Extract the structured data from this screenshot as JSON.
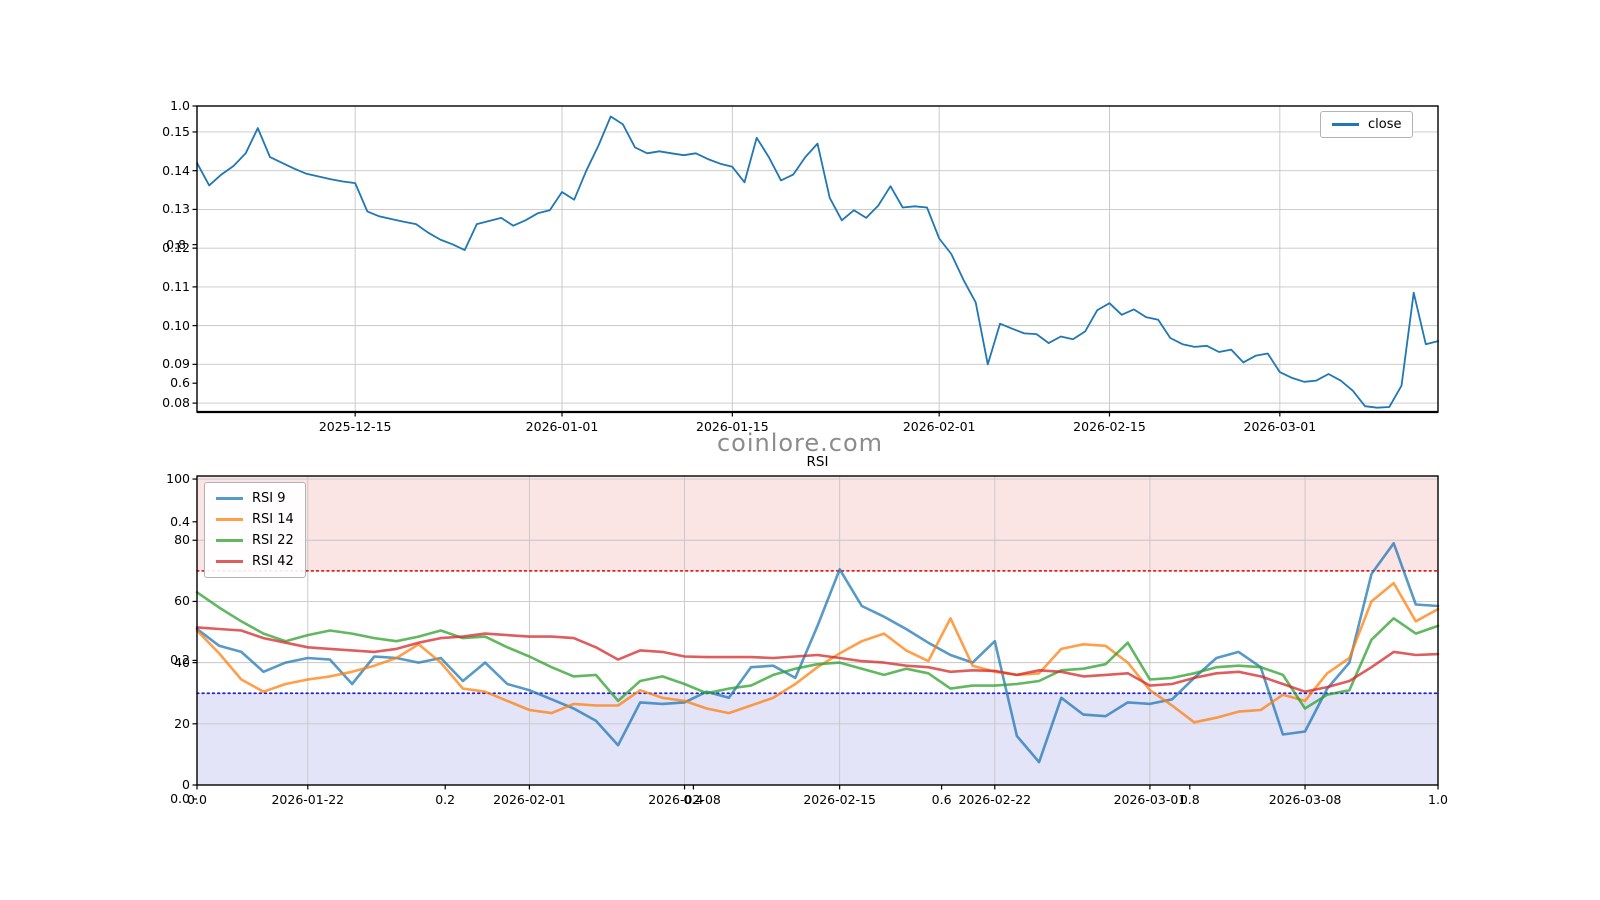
{
  "watermark": {
    "text": "coinlore.com",
    "color": "#8c8c8c"
  },
  "overlay_axis": {
    "x_ticks": {
      "values": [
        0,
        0.2,
        0.4,
        0.6,
        0.8,
        1.0
      ],
      "labels": [
        "0.0",
        "0.2",
        "0.4",
        "0.6",
        "0.8",
        "1.0"
      ]
    },
    "y_ticks": {
      "values": [
        0,
        0.2,
        0.4,
        0.6,
        0.8,
        1.0
      ],
      "labels": [
        "0.0",
        "0.2",
        "0.4",
        "0.6",
        "0.8",
        "1.0"
      ]
    }
  },
  "chart_data": [
    {
      "type": "line",
      "panel": "price",
      "ylim": [
        0.0777,
        0.1567
      ],
      "x_range_dates": [
        "2025-12-02",
        "2026-03-14"
      ],
      "grid": true,
      "legend_position": "upper right",
      "x_ticks": {
        "dates": [
          "2025-12-15",
          "2026-01-01",
          "2026-01-15",
          "2026-02-01",
          "2026-02-15",
          "2026-03-01"
        ]
      },
      "y_ticks": {
        "values": [
          0.08,
          0.09,
          0.1,
          0.11,
          0.12,
          0.13,
          0.14,
          0.15
        ],
        "labels": [
          "0.08",
          "0.09",
          "0.10",
          "0.11",
          "0.12",
          "0.13",
          "0.14",
          "0.15"
        ]
      },
      "series": [
        {
          "name": "close",
          "color": "#1f77b4",
          "opacity": 1,
          "line_width": 1.8,
          "start_date": "2025-12-02",
          "values": [
            0.142,
            0.1362,
            0.139,
            0.1412,
            0.1445,
            0.151,
            0.1435,
            0.142,
            0.1405,
            0.1392,
            0.1385,
            0.1378,
            0.1372,
            0.1368,
            0.1295,
            0.1282,
            0.1275,
            0.1268,
            0.1262,
            0.124,
            0.1222,
            0.121,
            0.1195,
            0.1262,
            0.127,
            0.1278,
            0.1258,
            0.1272,
            0.129,
            0.1298,
            0.1345,
            0.1325,
            0.14,
            0.1465,
            0.154,
            0.152,
            0.146,
            0.1445,
            0.145,
            0.1445,
            0.144,
            0.1445,
            0.143,
            0.1418,
            0.141,
            0.137,
            0.1485,
            0.1435,
            0.1375,
            0.139,
            0.1435,
            0.147,
            0.133,
            0.1272,
            0.1298,
            0.1278,
            0.131,
            0.136,
            0.1305,
            0.1308,
            0.1305,
            0.1225,
            0.1185,
            0.1118,
            0.106,
            0.09,
            0.1005,
            0.0992,
            0.098,
            0.0978,
            0.0955,
            0.0972,
            0.0965,
            0.0985,
            0.104,
            0.1058,
            0.1028,
            0.1042,
            0.1022,
            0.1015,
            0.0968,
            0.0952,
            0.0945,
            0.0948,
            0.0932,
            0.0938,
            0.0905,
            0.0922,
            0.0928,
            0.088,
            0.0865,
            0.0855,
            0.0858,
            0.0875,
            0.0858,
            0.0832,
            0.0792,
            0.0788,
            0.079,
            0.0845,
            0.1085,
            0.0952,
            0.096
          ]
        }
      ]
    },
    {
      "type": "line",
      "panel": "rsi",
      "title": "RSI",
      "ylim": [
        0,
        101
      ],
      "x_range_dates": [
        "2026-01-17",
        "2026-03-14"
      ],
      "grid": true,
      "legend_position": "upper left",
      "x_ticks": {
        "dates": [
          "2026-01-22",
          "2026-02-01",
          "2026-02-08",
          "2026-02-15",
          "2026-02-22",
          "2026-03-01",
          "2026-03-08"
        ]
      },
      "y_ticks": {
        "values": [
          0,
          20,
          40,
          60,
          80,
          100
        ],
        "labels": [
          "0",
          "20",
          "40",
          "60",
          "80",
          "100"
        ]
      },
      "levels": [
        {
          "value": 70,
          "color": "#dd2222"
        },
        {
          "value": 30,
          "color": "#2222cc"
        }
      ],
      "bands": [
        {
          "from": 70,
          "to": 101,
          "color": "rgba(221,34,34,0.12)"
        },
        {
          "from": 0,
          "to": 30,
          "color": "rgba(45,45,200,0.13)"
        }
      ],
      "series": [
        {
          "name": "RSI 9",
          "color": "#1f77b4",
          "opacity": 0.75,
          "line_width": 2.6,
          "start_date": "2026-01-17",
          "values": [
            51,
            45.5,
            43.5,
            37,
            40,
            41.5,
            41,
            33,
            42,
            41.5,
            40,
            41.5,
            34,
            40,
            33,
            31,
            28,
            25,
            21,
            13,
            27,
            26.5,
            27,
            30.5,
            28.5,
            38.5,
            39,
            35,
            52,
            70.5,
            58.5,
            55,
            51,
            46.5,
            42.5,
            40,
            47,
            16,
            7.5,
            28.5,
            23,
            22.5,
            27,
            26.5,
            28,
            35,
            41.5,
            43.5,
            38.5,
            16.5,
            17.5,
            31.5,
            40,
            69,
            79,
            59,
            58.5
          ]
        },
        {
          "name": "RSI 14",
          "color": "#ff7f0e",
          "opacity": 0.75,
          "line_width": 2.6,
          "start_date": "2026-01-17",
          "values": [
            50.5,
            43,
            34.5,
            30.5,
            33,
            34.5,
            35.5,
            37,
            39,
            41.5,
            46,
            40,
            31.5,
            30.5,
            27.5,
            24.5,
            23.5,
            26.5,
            26,
            26,
            31,
            28.5,
            27.5,
            25,
            23.5,
            26,
            28.5,
            33,
            38.5,
            43,
            47,
            49.5,
            44,
            40.5,
            54.5,
            39,
            37,
            36,
            36.5,
            44.5,
            46,
            45.5,
            40,
            31,
            26,
            20.5,
            22,
            24,
            24.5,
            29.5,
            27.5,
            36.5,
            41.5,
            60,
            66,
            53.5,
            57.5
          ]
        },
        {
          "name": "RSI 22",
          "color": "#2ca02c",
          "opacity": 0.75,
          "line_width": 2.6,
          "start_date": "2026-01-17",
          "values": [
            63,
            58,
            53.5,
            49.5,
            47,
            49,
            50.5,
            49.5,
            48,
            47,
            48.5,
            50.5,
            48,
            48.5,
            45,
            42,
            38.5,
            35.5,
            36,
            27.5,
            34,
            35.5,
            33,
            30,
            31.5,
            32.5,
            36,
            38,
            39.5,
            40,
            38,
            36,
            38,
            36.5,
            31.5,
            32.5,
            32.5,
            33,
            34,
            37.5,
            38,
            39.5,
            46.5,
            34.5,
            35,
            36.5,
            38.5,
            39,
            38.5,
            36,
            25,
            29.5,
            31,
            47.5,
            54.5,
            49.5,
            52
          ]
        },
        {
          "name": "RSI 42",
          "color": "#d62728",
          "opacity": 0.75,
          "line_width": 2.6,
          "start_date": "2026-01-17",
          "values": [
            51.5,
            51,
            50.5,
            48,
            46.5,
            45,
            44.5,
            44,
            43.5,
            44.5,
            46.5,
            48,
            48.5,
            49.5,
            49,
            48.5,
            48.5,
            48,
            45,
            41,
            44,
            43.5,
            42,
            41.8,
            41.8,
            41.8,
            41.5,
            42,
            42.5,
            41.5,
            40.5,
            40,
            39,
            38.5,
            37,
            37.5,
            37.3,
            36,
            37.5,
            37,
            35.5,
            36,
            36.5,
            32.5,
            33,
            35,
            36.5,
            37,
            35.5,
            33,
            30.5,
            32,
            34,
            38.5,
            43.5,
            42.5,
            42.8
          ]
        }
      ]
    }
  ]
}
